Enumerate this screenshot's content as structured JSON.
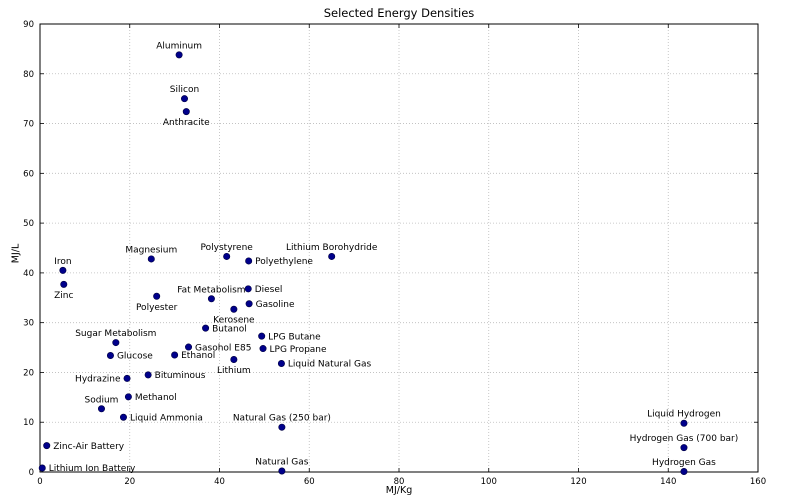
{
  "figure": {
    "title": "Selected Energy Densities",
    "xlabel": "MJ/Kg",
    "ylabel": "MJ/L"
  },
  "chart_data": {
    "type": "scatter",
    "title": "Selected Energy Densities",
    "xlabel": "MJ/Kg",
    "ylabel": "MJ/L",
    "xlim": [
      0,
      160
    ],
    "ylim": [
      0,
      90
    ],
    "xticks": [
      0,
      20,
      40,
      60,
      80,
      100,
      120,
      140,
      160
    ],
    "yticks": [
      0,
      10,
      20,
      30,
      40,
      50,
      60,
      70,
      80,
      90
    ],
    "grid": true,
    "grid_style": "dotted",
    "grid_color": "#bbbbbb",
    "spine_color": "#000000",
    "background_color": "#ffffff",
    "legend_position": "none",
    "marker": {
      "shape": "circle",
      "color": "#00008b",
      "edge_color": "#000040",
      "radius": 3.2
    },
    "label_font_px": 9,
    "points": [
      {
        "label": "Aluminum",
        "x": 31.0,
        "y": 83.8,
        "label_pos": "above"
      },
      {
        "label": "Silicon",
        "x": 32.2,
        "y": 75.0,
        "label_pos": "above"
      },
      {
        "label": "Anthracite",
        "x": 32.6,
        "y": 72.4,
        "label_pos": "below"
      },
      {
        "label": "Iron",
        "x": 5.1,
        "y": 40.5,
        "label_pos": "above"
      },
      {
        "label": "Zinc",
        "x": 5.3,
        "y": 37.7,
        "label_pos": "below"
      },
      {
        "label": "Magnesium",
        "x": 24.8,
        "y": 42.8,
        "label_pos": "above"
      },
      {
        "label": "Polystyrene",
        "x": 41.6,
        "y": 43.3,
        "label_pos": "above"
      },
      {
        "label": "Polyethylene",
        "x": 46.5,
        "y": 42.4,
        "label_pos": "right"
      },
      {
        "label": "Lithium Borohydride",
        "x": 65.0,
        "y": 43.3,
        "label_pos": "above"
      },
      {
        "label": "Polyester",
        "x": 26.0,
        "y": 35.3,
        "label_pos": "below"
      },
      {
        "label": "Fat Metabolism",
        "x": 38.2,
        "y": 34.8,
        "label_pos": "above"
      },
      {
        "label": "Diesel",
        "x": 46.4,
        "y": 36.8,
        "label_pos": "right"
      },
      {
        "label": "Gasoline",
        "x": 46.6,
        "y": 33.8,
        "label_pos": "right"
      },
      {
        "label": "Kerosene",
        "x": 43.2,
        "y": 32.7,
        "label_pos": "below"
      },
      {
        "label": "Butanol",
        "x": 36.9,
        "y": 28.9,
        "label_pos": "right"
      },
      {
        "label": "LPG Butane",
        "x": 49.4,
        "y": 27.3,
        "label_pos": "right"
      },
      {
        "label": "LPG Propane",
        "x": 49.7,
        "y": 24.8,
        "label_pos": "right"
      },
      {
        "label": "Gasohol E85",
        "x": 33.1,
        "y": 25.1,
        "label_pos": "right"
      },
      {
        "label": "Ethanol",
        "x": 30.0,
        "y": 23.5,
        "label_pos": "right"
      },
      {
        "label": "Lithium",
        "x": 43.2,
        "y": 22.6,
        "label_pos": "below"
      },
      {
        "label": "Liquid Natural Gas",
        "x": 53.8,
        "y": 21.8,
        "label_pos": "right"
      },
      {
        "label": "Sugar Metabolism",
        "x": 16.9,
        "y": 26.0,
        "label_pos": "above"
      },
      {
        "label": "Glucose",
        "x": 15.7,
        "y": 23.4,
        "label_pos": "right"
      },
      {
        "label": "Bituminous",
        "x": 24.1,
        "y": 19.5,
        "label_pos": "right"
      },
      {
        "label": "Hydrazine",
        "x": 19.4,
        "y": 18.8,
        "label_pos": "left"
      },
      {
        "label": "Methanol",
        "x": 19.7,
        "y": 15.1,
        "label_pos": "right"
      },
      {
        "label": "Sodium",
        "x": 13.7,
        "y": 12.7,
        "label_pos": "above"
      },
      {
        "label": "Liquid Ammonia",
        "x": 18.6,
        "y": 11.0,
        "label_pos": "right"
      },
      {
        "label": "Zinc-Air Battery",
        "x": 1.5,
        "y": 5.3,
        "label_pos": "right"
      },
      {
        "label": "Lithium Ion Battery",
        "x": 0.5,
        "y": 0.8,
        "label_pos": "right"
      },
      {
        "label": "Natural Gas (250 bar)",
        "x": 53.9,
        "y": 9.0,
        "label_pos": "above"
      },
      {
        "label": "Natural Gas",
        "x": 53.9,
        "y": 0.2,
        "label_pos": "above"
      },
      {
        "label": "Liquid Hydrogen",
        "x": 143.5,
        "y": 9.8,
        "label_pos": "above"
      },
      {
        "label": "Hydrogen Gas (700 bar)",
        "x": 143.5,
        "y": 4.9,
        "label_pos": "above"
      },
      {
        "label": "Hydrogen Gas",
        "x": 143.5,
        "y": 0.1,
        "label_pos": "above"
      }
    ]
  }
}
